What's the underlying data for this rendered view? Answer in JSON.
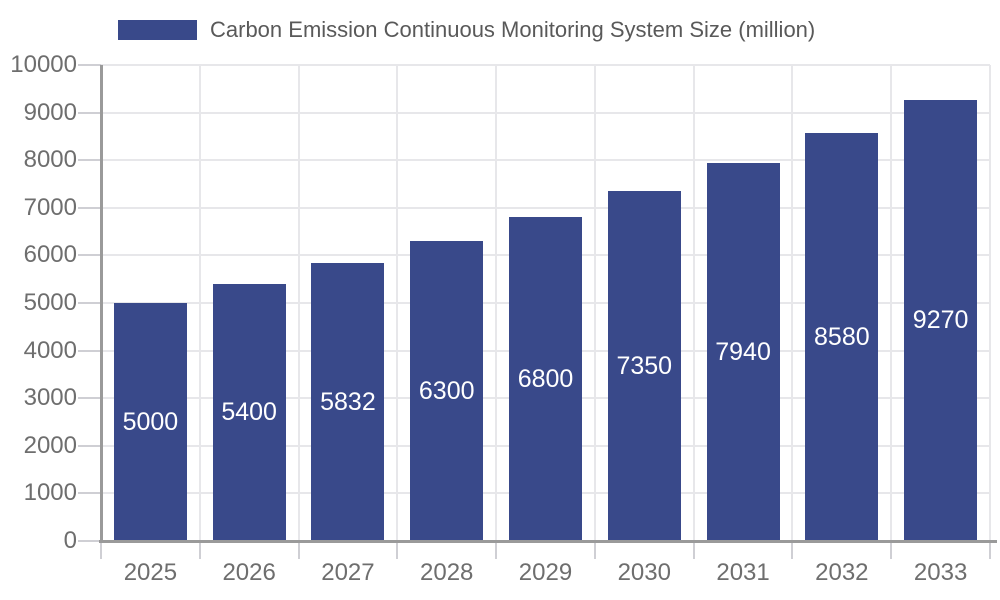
{
  "chart_data": {
    "type": "bar",
    "title": "",
    "legend": "Carbon Emission Continuous Monitoring System Size (million)",
    "legend_position": "top-left",
    "categories": [
      "2025",
      "2026",
      "2027",
      "2028",
      "2029",
      "2030",
      "2031",
      "2032",
      "2033"
    ],
    "values": [
      5000,
      5400,
      5832,
      6300,
      6800,
      7350,
      7940,
      8580,
      9270
    ],
    "xlabel": "",
    "ylabel": "",
    "ylim": [
      0,
      10000
    ],
    "ytick_step": 1000,
    "grid": true,
    "bar_label_position": "center",
    "colors": {
      "bar": "#39498a",
      "grid": "#e7e7ea",
      "axis": "#9a9a9a",
      "tick": "#cfcfd4",
      "label": "#6e6e6e",
      "legend": "#595959",
      "barlabel": "#ffffff"
    }
  }
}
